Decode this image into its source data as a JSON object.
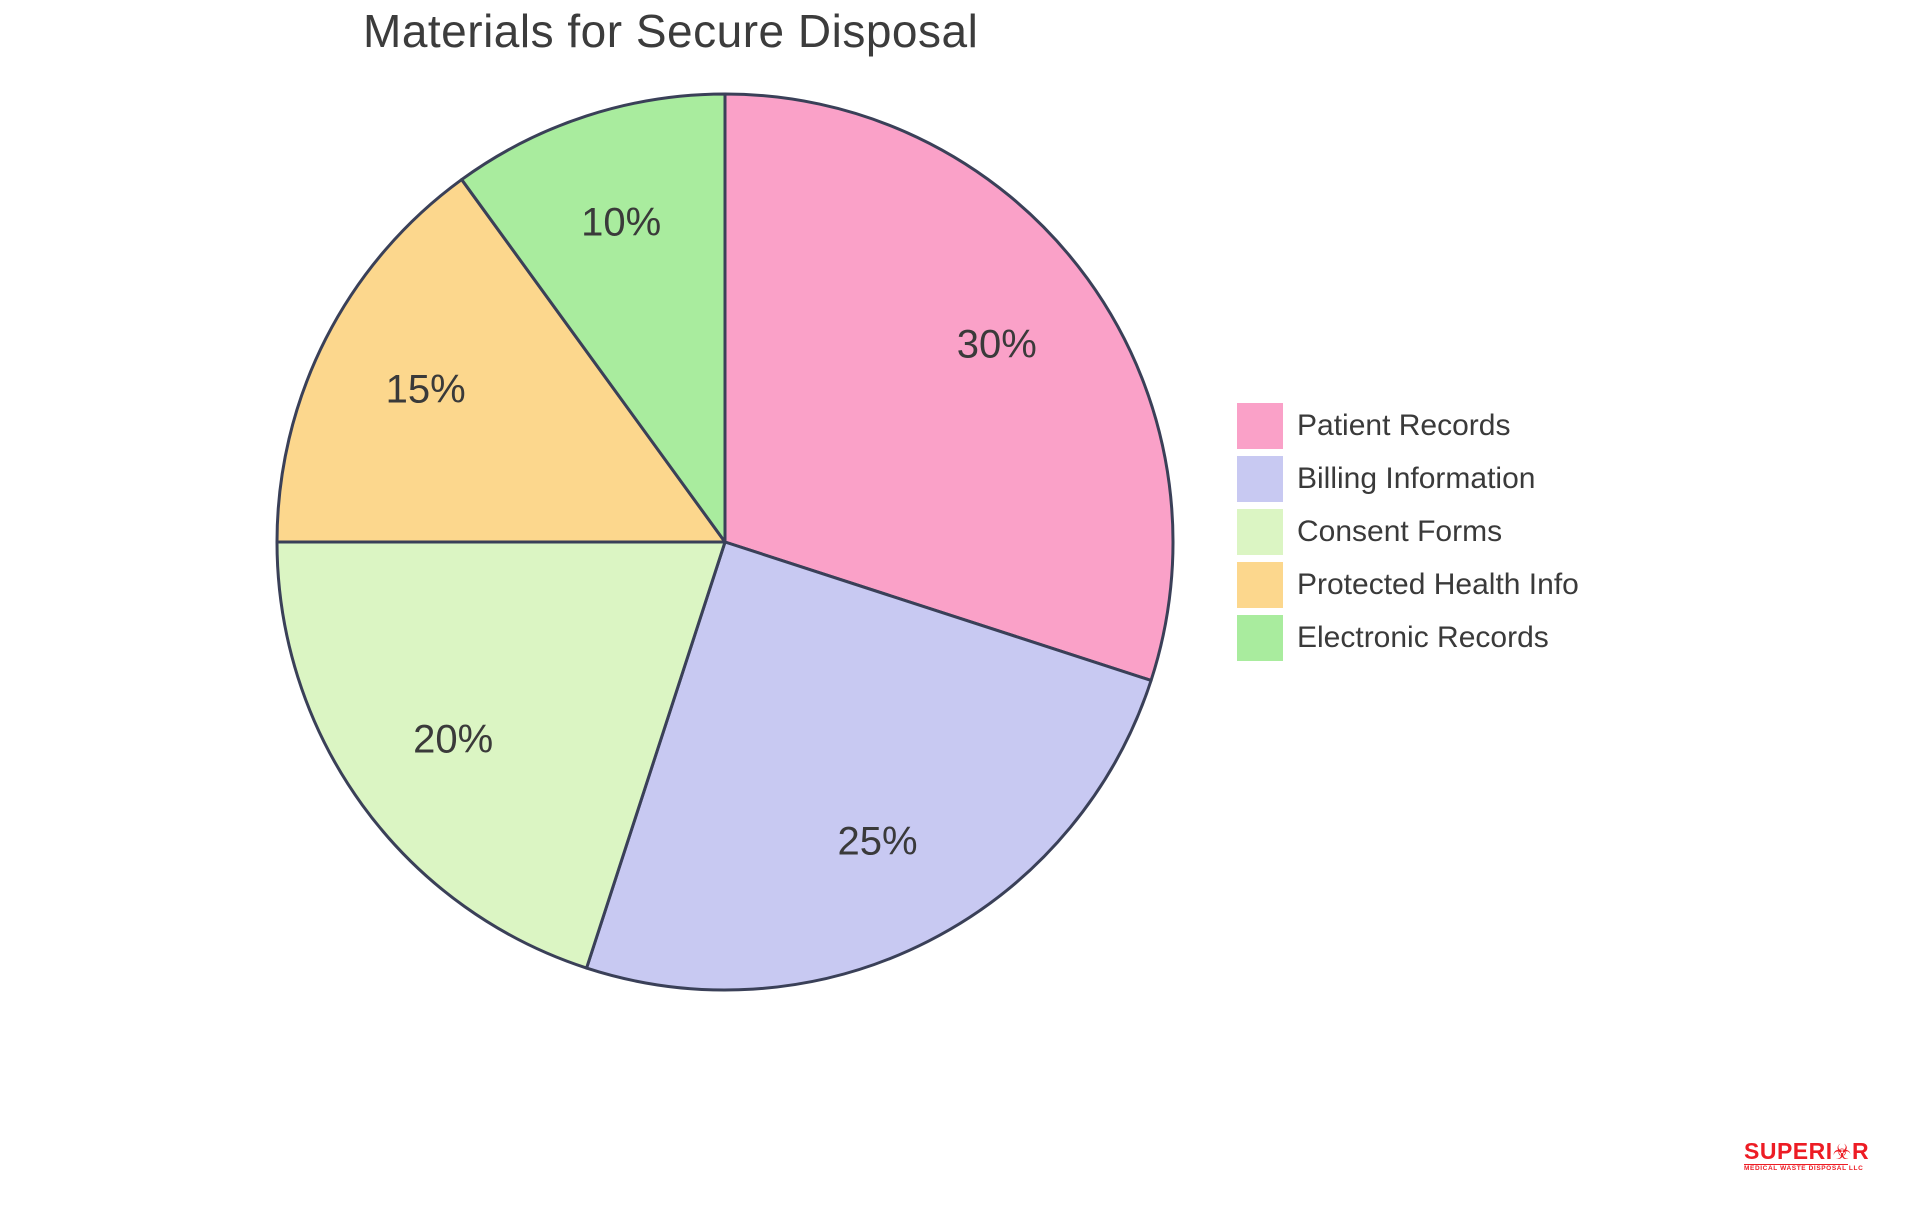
{
  "chart_data": {
    "type": "pie",
    "title": "Materials for Secure Disposal",
    "categories": [
      "Patient Records",
      "Billing Information",
      "Consent Forms",
      "Protected Health Info",
      "Electronic Records"
    ],
    "values": [
      30,
      25,
      20,
      15,
      10
    ],
    "slice_labels": [
      "30%",
      "25%",
      "20%",
      "15%",
      "10%"
    ],
    "colors": [
      "#FAA1C8",
      "#C8C9F2",
      "#DBF5C3",
      "#FCD78D",
      "#A9EC9E"
    ],
    "stroke_color": "#3A4058",
    "label_color": "#3A3A3A",
    "start_angle_deg": 0,
    "direction": "clockwise",
    "legend_position": "right",
    "label_radius_fraction": 0.75,
    "grid": false
  },
  "watermark": {
    "brand_prefix": "SUPERI",
    "biohazard_icon": "☣",
    "brand_suffix": "R",
    "tagline": "MEDICAL WASTE DISPOSAL LLC",
    "color": "#ED1C24"
  }
}
